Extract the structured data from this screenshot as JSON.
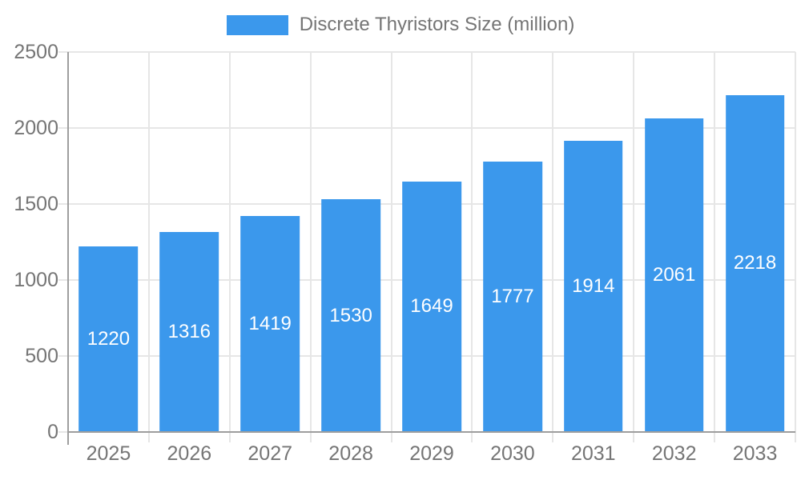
{
  "chart_data": {
    "type": "bar",
    "title": "Discrete Thyristors Size (million)",
    "legend_position": "top",
    "categories": [
      "2025",
      "2026",
      "2027",
      "2028",
      "2029",
      "2030",
      "2031",
      "2032",
      "2033"
    ],
    "series": [
      {
        "name": "Discrete Thyristors Size (million)",
        "values": [
          1220,
          1316,
          1419,
          1530,
          1649,
          1777,
          1914,
          2061,
          2218
        ]
      }
    ],
    "xlabel": "",
    "ylabel": "",
    "ylim": [
      0,
      2500
    ],
    "yticks": [
      0,
      500,
      1000,
      1500,
      2000,
      2500
    ],
    "grid": true,
    "bar_labels_inside": true,
    "colors": {
      "bar": "#3b98ec",
      "bar_label": "#ffffff",
      "axis_text": "#757575",
      "axis_line": "#9e9e9e",
      "gridline": "#e6e6e6",
      "background": "#ffffff"
    }
  }
}
